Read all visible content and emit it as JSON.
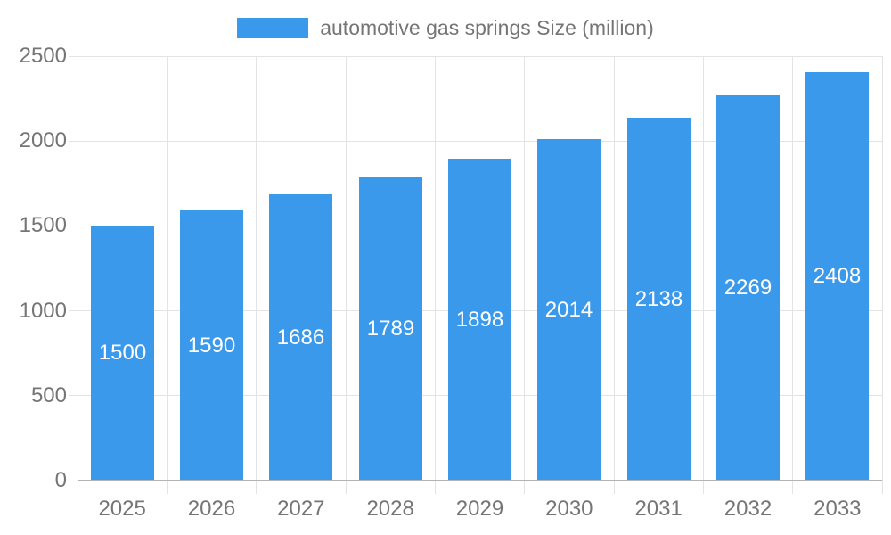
{
  "legend": {
    "label": "automotive gas springs Size (million)",
    "swatch_color": "#3b99ec"
  },
  "chart_data": {
    "type": "bar",
    "title": "automotive gas springs Size (million)",
    "categories": [
      "2025",
      "2026",
      "2027",
      "2028",
      "2029",
      "2030",
      "2031",
      "2032",
      "2033"
    ],
    "series": [
      {
        "name": "automotive gas springs Size (million)",
        "values": [
          1500,
          1590,
          1686,
          1789,
          1898,
          2014,
          2138,
          2269,
          2408
        ]
      }
    ],
    "value_labels": [
      "1500",
      "1590",
      "1686",
      "1789",
      "1898",
      "2014",
      "2138",
      "2269",
      "2408"
    ],
    "xlabel": "",
    "ylabel": "",
    "ylim": [
      0,
      2500
    ],
    "yticks": [
      "0",
      "500",
      "1000",
      "1500",
      "2000",
      "2500"
    ],
    "grid": true,
    "legend_position": "top",
    "colors": {
      "bar": "#3b99ec",
      "value_label": "#ffffff",
      "axis_text": "#757575",
      "gridline": "#e3e3e3",
      "axis_line": "#8a8a8a",
      "baseline": "#b3b3b3",
      "background": "#ffffff"
    }
  }
}
